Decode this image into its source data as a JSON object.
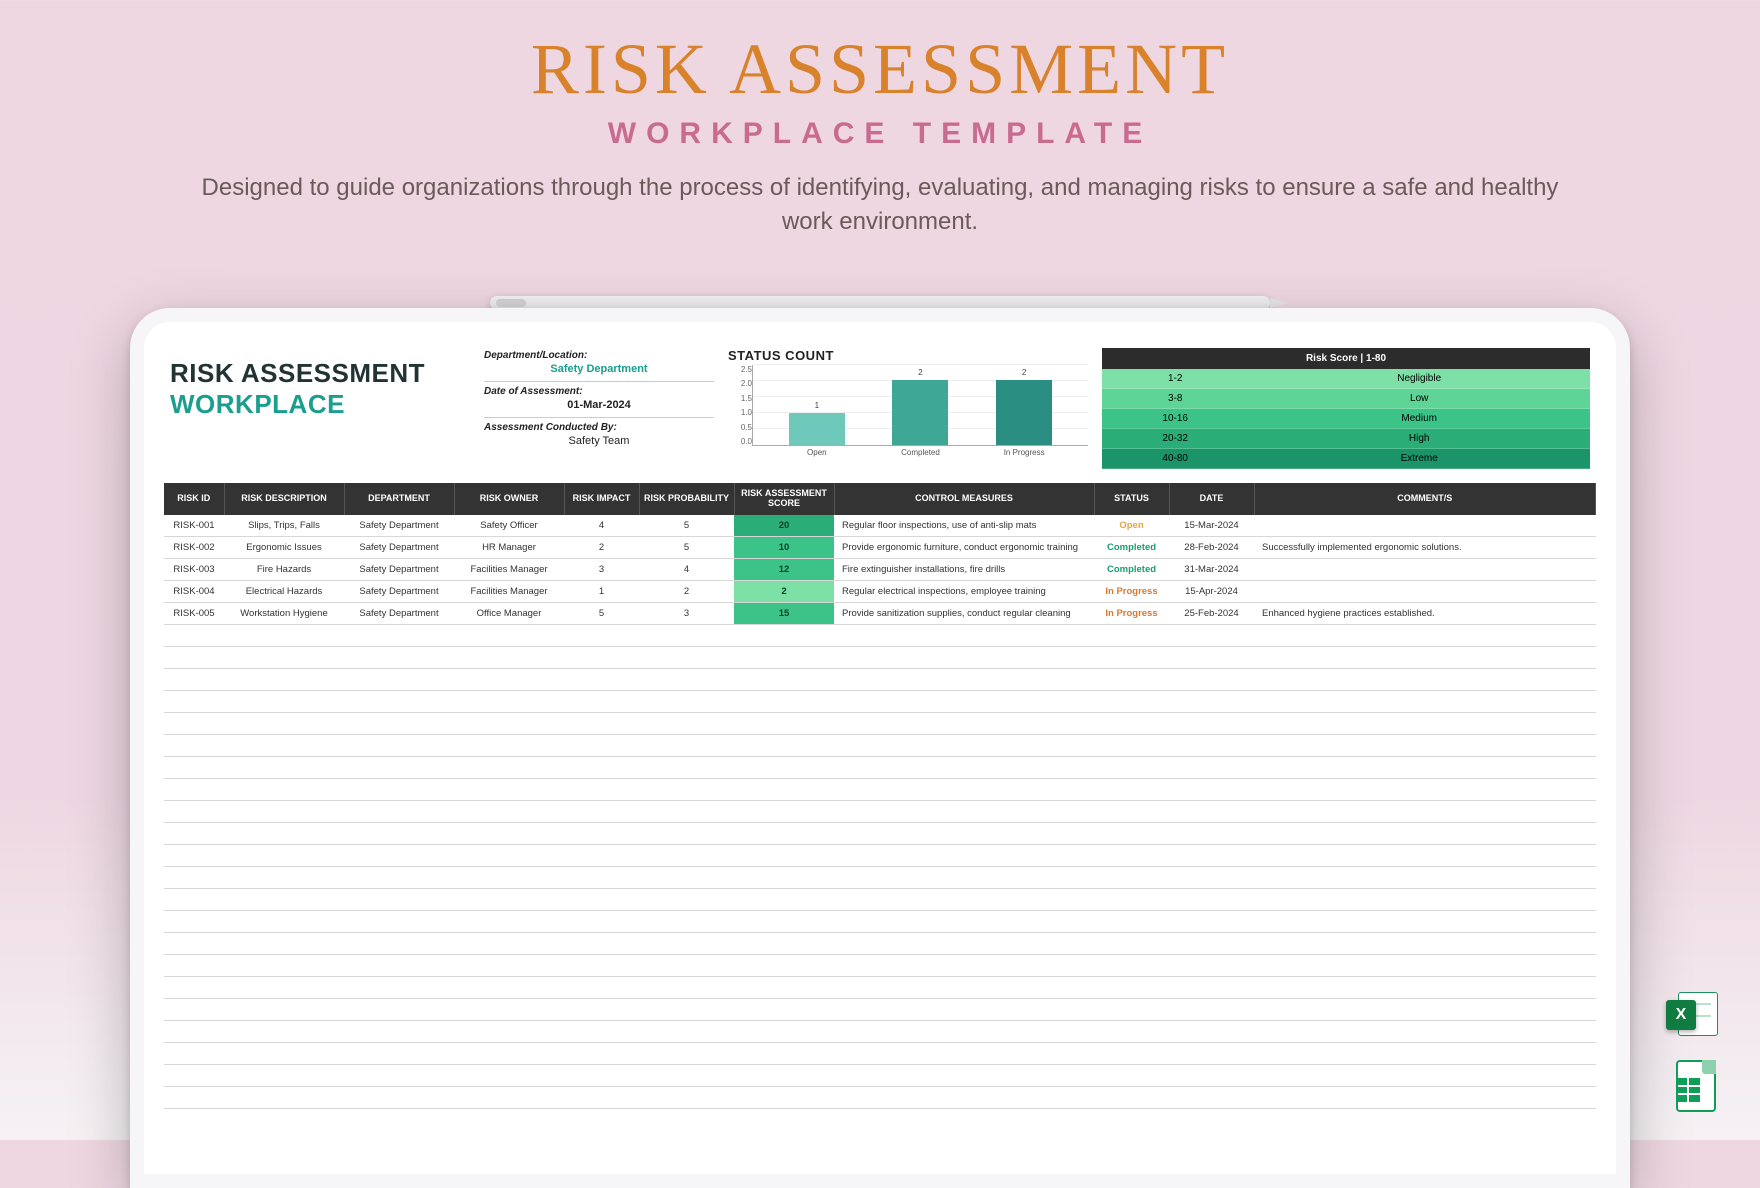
{
  "header": {
    "title": "RISK ASSESSMENT",
    "subtitle": "WORKPLACE TEMPLATE",
    "description": "Designed to guide organizations through the process of identifying, evaluating, and managing risks to ensure a safe and healthy work environment."
  },
  "sheet": {
    "title_line1": "RISK ASSESSMENT",
    "title_line2": "WORKPLACE"
  },
  "meta": {
    "dept_label": "Department/Location:",
    "dept_value": "Safety Department",
    "date_label": "Date of Assessment:",
    "date_value": "01-Mar-2024",
    "conducted_label": "Assessment Conducted By:",
    "conducted_value": "Safety Team"
  },
  "chart": {
    "title": "STATUS COUNT",
    "ylim": [
      0,
      2.5
    ],
    "ytick_step": 0.5,
    "yticks": [
      "2.5",
      "2.0",
      "1.5",
      "1.0",
      "0.5",
      "0.0"
    ],
    "grid_color": "#eeeeee",
    "axis_color": "#aaaaaa",
    "label_fontsize": 8,
    "bars": [
      {
        "label": "Open",
        "value": 1,
        "color": "#6fc9ba"
      },
      {
        "label": "Completed",
        "value": 2,
        "color": "#3ea795"
      },
      {
        "label": "In Progress",
        "value": 2,
        "color": "#2b8e82"
      }
    ]
  },
  "score_legend": {
    "header": "Risk Score | 1-80",
    "rows": [
      {
        "range": "1-2",
        "label": "Negligible",
        "color": "#7de0a7"
      },
      {
        "range": "3-8",
        "label": "Low",
        "color": "#5ed497"
      },
      {
        "range": "10-16",
        "label": "Medium",
        "color": "#3cc488"
      },
      {
        "range": "20-32",
        "label": "High",
        "color": "#2aad77"
      },
      {
        "range": "40-80",
        "label": "Extreme",
        "color": "#1a9468"
      }
    ]
  },
  "columns": [
    "RISK ID",
    "RISK DESCRIPTION",
    "DEPARTMENT",
    "RISK OWNER",
    "RISK IMPACT",
    "RISK PROBABILITY",
    "RISK ASSESSMENT SCORE",
    "CONTROL MEASURES",
    "STATUS",
    "DATE",
    "COMMENT/S"
  ],
  "column_widths": [
    "60px",
    "120px",
    "110px",
    "110px",
    "75px",
    "95px",
    "100px",
    "260px",
    "75px",
    "85px",
    "auto"
  ],
  "status_colors": {
    "Open": "#e8a43a",
    "Completed": "#1a9e6e",
    "In Progress": "#d97a2b"
  },
  "score_colors": {
    "20": "#2aad77",
    "10": "#3cc488",
    "12": "#3cc488",
    "2": "#7de0a7",
    "15": "#3cc488"
  },
  "rows": [
    {
      "id": "RISK-001",
      "desc": "Slips, Trips, Falls",
      "dept": "Safety Department",
      "owner": "Safety Officer",
      "impact": "4",
      "prob": "5",
      "score": "20",
      "measures": "Regular floor inspections, use of anti-slip mats",
      "status": "Open",
      "date": "15-Mar-2024",
      "comment": ""
    },
    {
      "id": "RISK-002",
      "desc": "Ergonomic Issues",
      "dept": "Safety Department",
      "owner": "HR Manager",
      "impact": "2",
      "prob": "5",
      "score": "10",
      "measures": "Provide ergonomic furniture, conduct ergonomic training",
      "status": "Completed",
      "date": "28-Feb-2024",
      "comment": "Successfully implemented ergonomic solutions."
    },
    {
      "id": "RISK-003",
      "desc": "Fire Hazards",
      "dept": "Safety Department",
      "owner": "Facilities Manager",
      "impact": "3",
      "prob": "4",
      "score": "12",
      "measures": "Fire extinguisher installations, fire drills",
      "status": "Completed",
      "date": "31-Mar-2024",
      "comment": ""
    },
    {
      "id": "RISK-004",
      "desc": "Electrical Hazards",
      "dept": "Safety Department",
      "owner": "Facilities Manager",
      "impact": "1",
      "prob": "2",
      "score": "2",
      "measures": "Regular electrical inspections, employee training",
      "status": "In Progress",
      "date": "15-Apr-2024",
      "comment": ""
    },
    {
      "id": "RISK-005",
      "desc": "Workstation Hygiene",
      "dept": "Safety Department",
      "owner": "Office Manager",
      "impact": "5",
      "prob": "3",
      "score": "15",
      "measures": "Provide sanitization supplies, conduct regular cleaning",
      "status": "In Progress",
      "date": "25-Feb-2024",
      "comment": "Enhanced hygiene practices established."
    }
  ],
  "empty_row_count": 22,
  "icons": {
    "excel_letter": "X"
  }
}
